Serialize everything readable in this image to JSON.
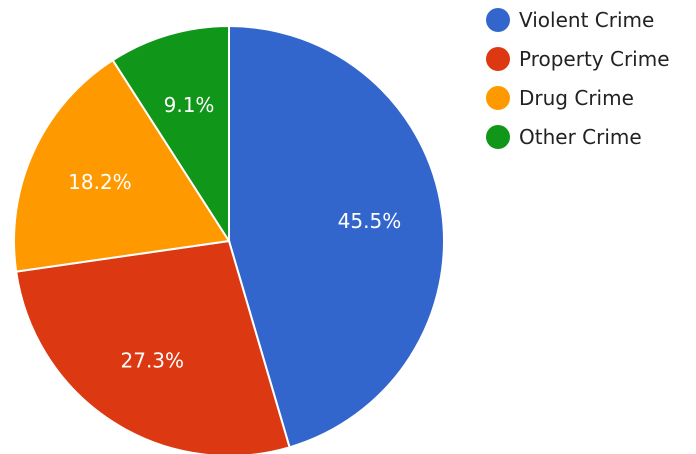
{
  "chart_data": {
    "type": "pie",
    "title": "",
    "categories": [
      "Violent Crime",
      "Property Crime",
      "Drug Crime",
      "Other Crime"
    ],
    "values": [
      45.5,
      27.3,
      18.2,
      9.1
    ],
    "labels": [
      "45.5%",
      "27.3%",
      "18.2%",
      "9.1%"
    ],
    "colors": [
      "#3366cc",
      "#dc3912",
      "#ff9900",
      "#109618"
    ],
    "legend_position": "right",
    "start_angle_deg": 0,
    "direction": "clockwise"
  }
}
